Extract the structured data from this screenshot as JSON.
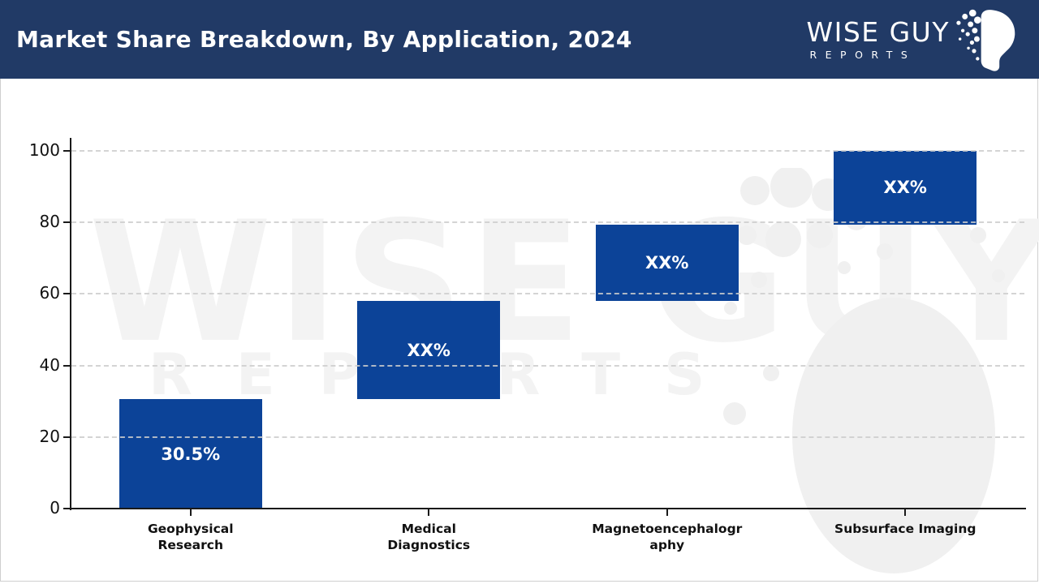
{
  "header": {
    "title": "Market Share Breakdown, By Application, 2024",
    "logo": {
      "line1": "WISE GUY",
      "line2": "REPORTS"
    }
  },
  "watermark": {
    "line1": "WISE GUY",
    "line2": "REPORTS"
  },
  "colors": {
    "header_bg": "#213a66",
    "bar": "#0c4398",
    "grid": "#cdcdcd",
    "axis": "#1a1a1a",
    "bar_label_text": "#ffffff",
    "watermark": "#f3f3f3",
    "content_border": "#cfcfcf"
  },
  "chart_data": {
    "type": "bar",
    "subtype": "waterfall",
    "title": "Market Share Breakdown, By Application, 2024",
    "categories": [
      "Geophysical Research",
      "Medical Diagnostics",
      "Magnetoencephalography",
      "Subsurface Imaging"
    ],
    "category_display": [
      [
        "Geophysical",
        "Research"
      ],
      [
        "Medical",
        "Diagnostics"
      ],
      [
        "Magnetoencephalogr",
        "aphy"
      ],
      [
        "Subsurface Imaging"
      ]
    ],
    "segments": [
      {
        "start": 0,
        "end": 30.5
      },
      {
        "start": 30.5,
        "end": 58
      },
      {
        "start": 58,
        "end": 79.4
      },
      {
        "start": 79.4,
        "end": 100
      }
    ],
    "values": [
      30.5,
      27.5,
      21.4,
      20.6
    ],
    "bar_labels": [
      "30.5%",
      "XX%",
      "XX%",
      "XX%"
    ],
    "xlabel": "",
    "ylabel": "",
    "ylim": [
      0,
      100
    ],
    "yticks": [
      0,
      20,
      40,
      60,
      80,
      100
    ],
    "grid": "dashed horizontal, drawn over bars",
    "legend": "none"
  }
}
